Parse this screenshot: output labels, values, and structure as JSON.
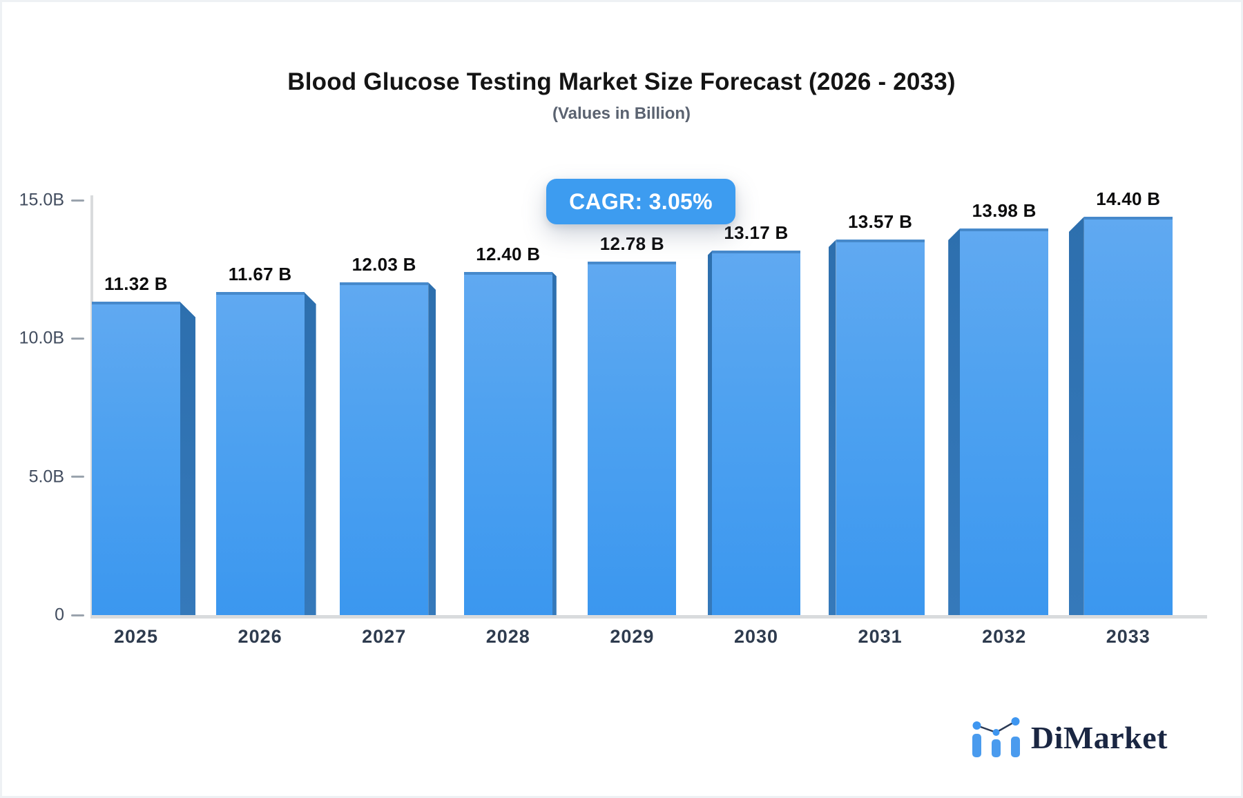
{
  "title": "Blood Glucose Testing Market Size Forecast (2026 - 2033)",
  "subtitle": "(Values in Billion)",
  "badge": {
    "label": "CAGR: 3.05%",
    "bg": "#3d9cf0"
  },
  "chart_data": {
    "type": "bar",
    "title": "Blood Glucose Testing Market Size Forecast (2026 - 2033)",
    "subtitle": "(Values in Billion)",
    "categories": [
      "2025",
      "2026",
      "2027",
      "2028",
      "2029",
      "2030",
      "2031",
      "2032",
      "2033"
    ],
    "values": [
      11.32,
      11.67,
      12.03,
      12.4,
      12.78,
      13.17,
      13.57,
      13.98,
      14.4
    ],
    "value_labels": [
      "11.32 B",
      "11.67 B",
      "12.03 B",
      "12.40 B",
      "12.78 B",
      "13.17 B",
      "13.57 B",
      "13.98 B",
      "14.40 B"
    ],
    "annotation": "CAGR: 3.05%",
    "xlabel": "",
    "ylabel": "",
    "ylim": [
      0,
      15
    ],
    "yticks": [
      {
        "value": 0,
        "label": "0"
      },
      {
        "value": 5,
        "label": "5.0B"
      },
      {
        "value": 10,
        "label": "10.0B"
      },
      {
        "value": 15,
        "label": "15.0B"
      }
    ],
    "grid": false,
    "legend": false,
    "bar_color_top": "#60a9f1",
    "bar_color_bottom": "#3b97ef",
    "bar_side_color": "#2f74b6",
    "style": "3d-perspective"
  },
  "logo": {
    "text": "DiMarket",
    "text_color": "#1a2642",
    "icon": "mini-bar-chart-icon",
    "icon_color": "#4a9bee"
  }
}
